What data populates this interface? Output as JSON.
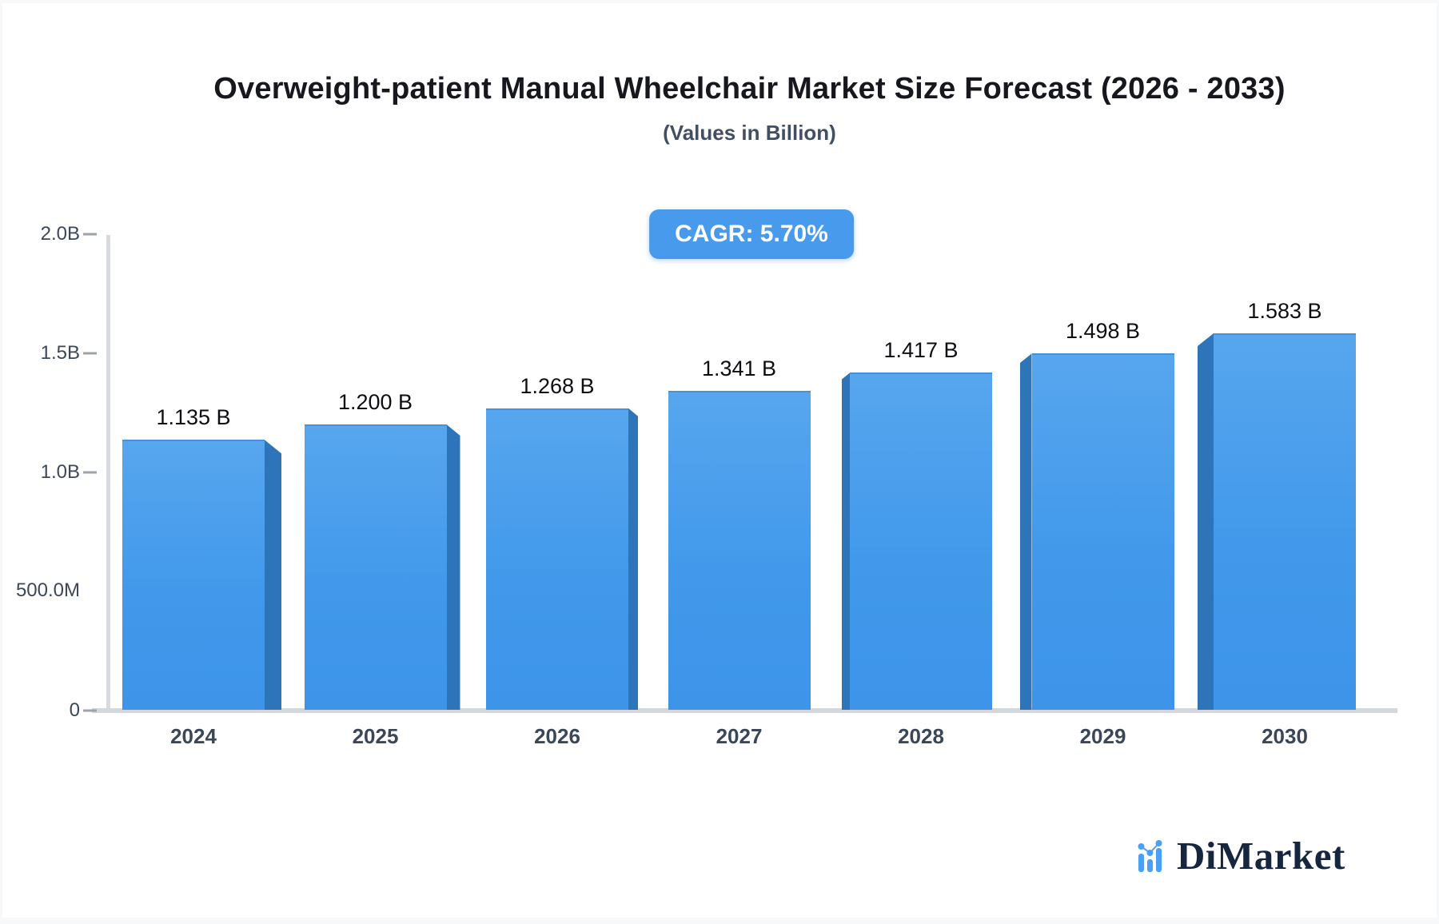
{
  "header": {
    "title": "Overweight-patient Manual Wheelchair Market Size Forecast (2026 - 2033)",
    "subtitle": "(Values in Billion)"
  },
  "badge": {
    "label": "CAGR: 5.70%",
    "background": "#479aec",
    "text_color": "#ffffff"
  },
  "chart_data": {
    "type": "bar",
    "title": "Overweight-patient Manual Wheelchair Market Size Forecast (2026 - 2033)",
    "subtitle": "(Values in Billion)",
    "annotation": "CAGR: 5.70%",
    "categories": [
      "2024",
      "2025",
      "2026",
      "2027",
      "2028",
      "2029",
      "2030"
    ],
    "values": [
      1.135,
      1.2,
      1.268,
      1.341,
      1.417,
      1.498,
      1.583
    ],
    "bar_labels": [
      "1.135 B",
      "1.200 B",
      "1.268 B",
      "1.341 B",
      "1.417 B",
      "1.498 B",
      "1.583 B"
    ],
    "unit": "B",
    "xlabel": "",
    "ylabel": "",
    "ylim": [
      0,
      2.0
    ],
    "grid": false,
    "legend": false,
    "y_ticks": [
      {
        "label": "2.0B",
        "value": 2.0,
        "tick": true
      },
      {
        "label": "1.5B",
        "value": 1.5,
        "tick": true
      },
      {
        "label": "1.0B",
        "value": 1.0,
        "tick": true
      },
      {
        "label": "500.0M",
        "value": 0.5,
        "tick": false
      },
      {
        "label": "0",
        "value": 0.0,
        "tick": true
      }
    ],
    "colors": {
      "bar_face_top": "#57a6ee",
      "bar_face_bottom": "#3d94e9",
      "bar_side": "#2d74b9",
      "axis": "#d5d8dc",
      "tick": "#9ba3ad",
      "value_label": "#0c0e12",
      "axis_label": "#3c4858"
    }
  },
  "logo": {
    "text": "DiMarket",
    "icon": "mini-bar-line-chart-icon",
    "icon_color": "#4aa0f4",
    "text_color": "#16263f"
  }
}
